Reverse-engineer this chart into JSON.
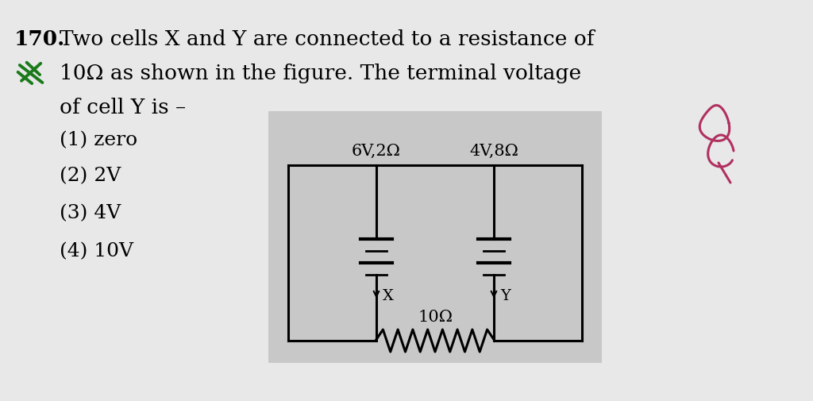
{
  "page_bg": "#e8e8e8",
  "question_number": "170.",
  "question_text_line1": "Two cells X and Y are connected to a resistance of",
  "question_text_line2": "10Ω as shown in the figure. The terminal voltage",
  "question_text_line3": "of cell Y is –",
  "options": [
    "(1) zero",
    "(2) 2V",
    "(3) 4V",
    "(4) 10V"
  ],
  "circuit_bg": "#c8c8c8",
  "cell_x_label": "6V,2Ω",
  "cell_y_label": "4V,8Ω",
  "resistor_label": "10Ω",
  "x_label": "X",
  "y_label": "Y",
  "font_size_question": 19,
  "font_size_options": 18,
  "font_size_circuit": 15,
  "green_color": "#1a7a1a",
  "red_color": "#b03060"
}
